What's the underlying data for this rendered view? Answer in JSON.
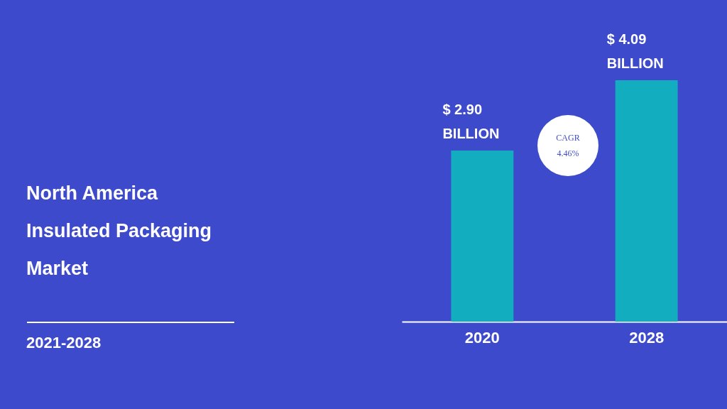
{
  "chart_data": {
    "type": "bar",
    "title": "North America Insulated Packaging Market",
    "subtitle": "2021-2028",
    "categories": [
      "2020",
      "2028"
    ],
    "values": [
      2.9,
      4.09
    ],
    "color": "#13adc0",
    "value_labels": [
      "$ 2.90 BILLION",
      "$ 4.09 BILLION"
    ],
    "annotations": [
      "CAGR 4.46%"
    ],
    "tick_labels": "x"
  }
}
